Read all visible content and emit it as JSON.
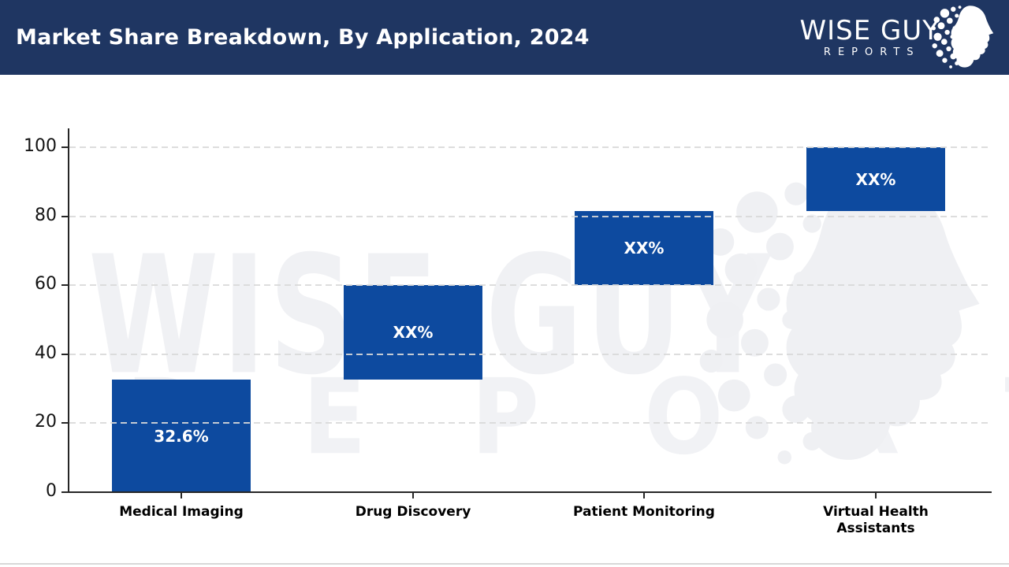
{
  "header": {
    "title": "Market Share Breakdown, By Application, 2024",
    "logo": {
      "name": "WISE GUY",
      "sub": "REPORTS"
    }
  },
  "watermark": {
    "big": "WISE GUY",
    "sub": "R E P O R T S"
  },
  "chart_data": {
    "type": "bar",
    "subtype": "waterfall",
    "title": "Market Share Breakdown, By Application, 2024",
    "categories": [
      "Medical Imaging",
      "Drug Discovery",
      "Patient Monitoring",
      "Virtual Health Assistants"
    ],
    "bars": [
      {
        "category": "Medical Imaging",
        "start": 0,
        "end": 32.6,
        "label": "32.6%"
      },
      {
        "category": "Drug Discovery",
        "start": 32.6,
        "end": 60,
        "label": "XX%"
      },
      {
        "category": "Patient Monitoring",
        "start": 60,
        "end": 81.4,
        "label": "XX%"
      },
      {
        "category": "Virtual Health Assistants",
        "start": 81.4,
        "end": 100,
        "label": "XX%"
      }
    ],
    "xlabel": "",
    "ylabel": "",
    "ylim": [
      0,
      105
    ],
    "yticks": [
      0,
      20,
      40,
      60,
      80,
      100
    ],
    "grid": "horizontal-dashed",
    "legend": false
  },
  "colors": {
    "header_bg": "#1f3662",
    "bar": "#0d4a9f",
    "bar_label": "#ffffff",
    "grid": "#d9d9d9",
    "axis": "#262626",
    "watermark": "#f0f1f4"
  }
}
